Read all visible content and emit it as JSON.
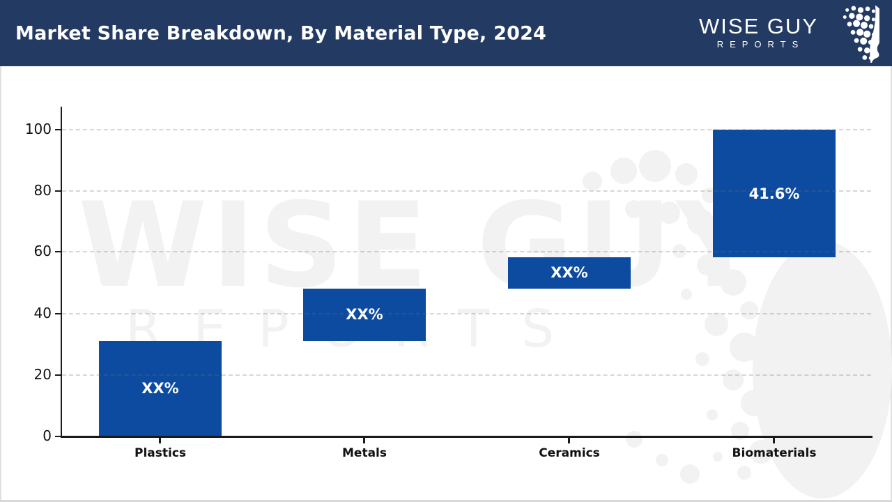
{
  "header": {
    "title": "Market Share Breakdown, By Material Type, 2024",
    "bg_color": "#233a63",
    "text_color": "#ffffff",
    "logo": {
      "line1": "WISE GUY",
      "line2": "REPORTS"
    }
  },
  "watermark": {
    "line1": "WISE GUY",
    "line2": "REPORTS",
    "color": "#f2f2f2"
  },
  "chart_data": {
    "type": "bar",
    "subtype": "waterfall",
    "title": "Market Share Breakdown, By Material Type, 2024",
    "categories": [
      "Plastics",
      "Metals",
      "Ceramics",
      "Biomaterials"
    ],
    "series": [
      {
        "name": "Market share (%)",
        "base": [
          0,
          31.2,
          48.2,
          58.4
        ],
        "value": [
          31.2,
          17.0,
          10.2,
          41.6
        ],
        "labels": [
          "XX%",
          "XX%",
          "XX%",
          "41.6%"
        ]
      }
    ],
    "xlabel": "",
    "ylabel": "",
    "ylim": [
      0,
      107
    ],
    "yticks": [
      0,
      20,
      40,
      60,
      80,
      100
    ],
    "grid": "horizontal-dashed",
    "legend": "none",
    "bar_color": "#0c4ba0",
    "label_color": "#ffffff",
    "axis_color": "#1a1a1a"
  }
}
